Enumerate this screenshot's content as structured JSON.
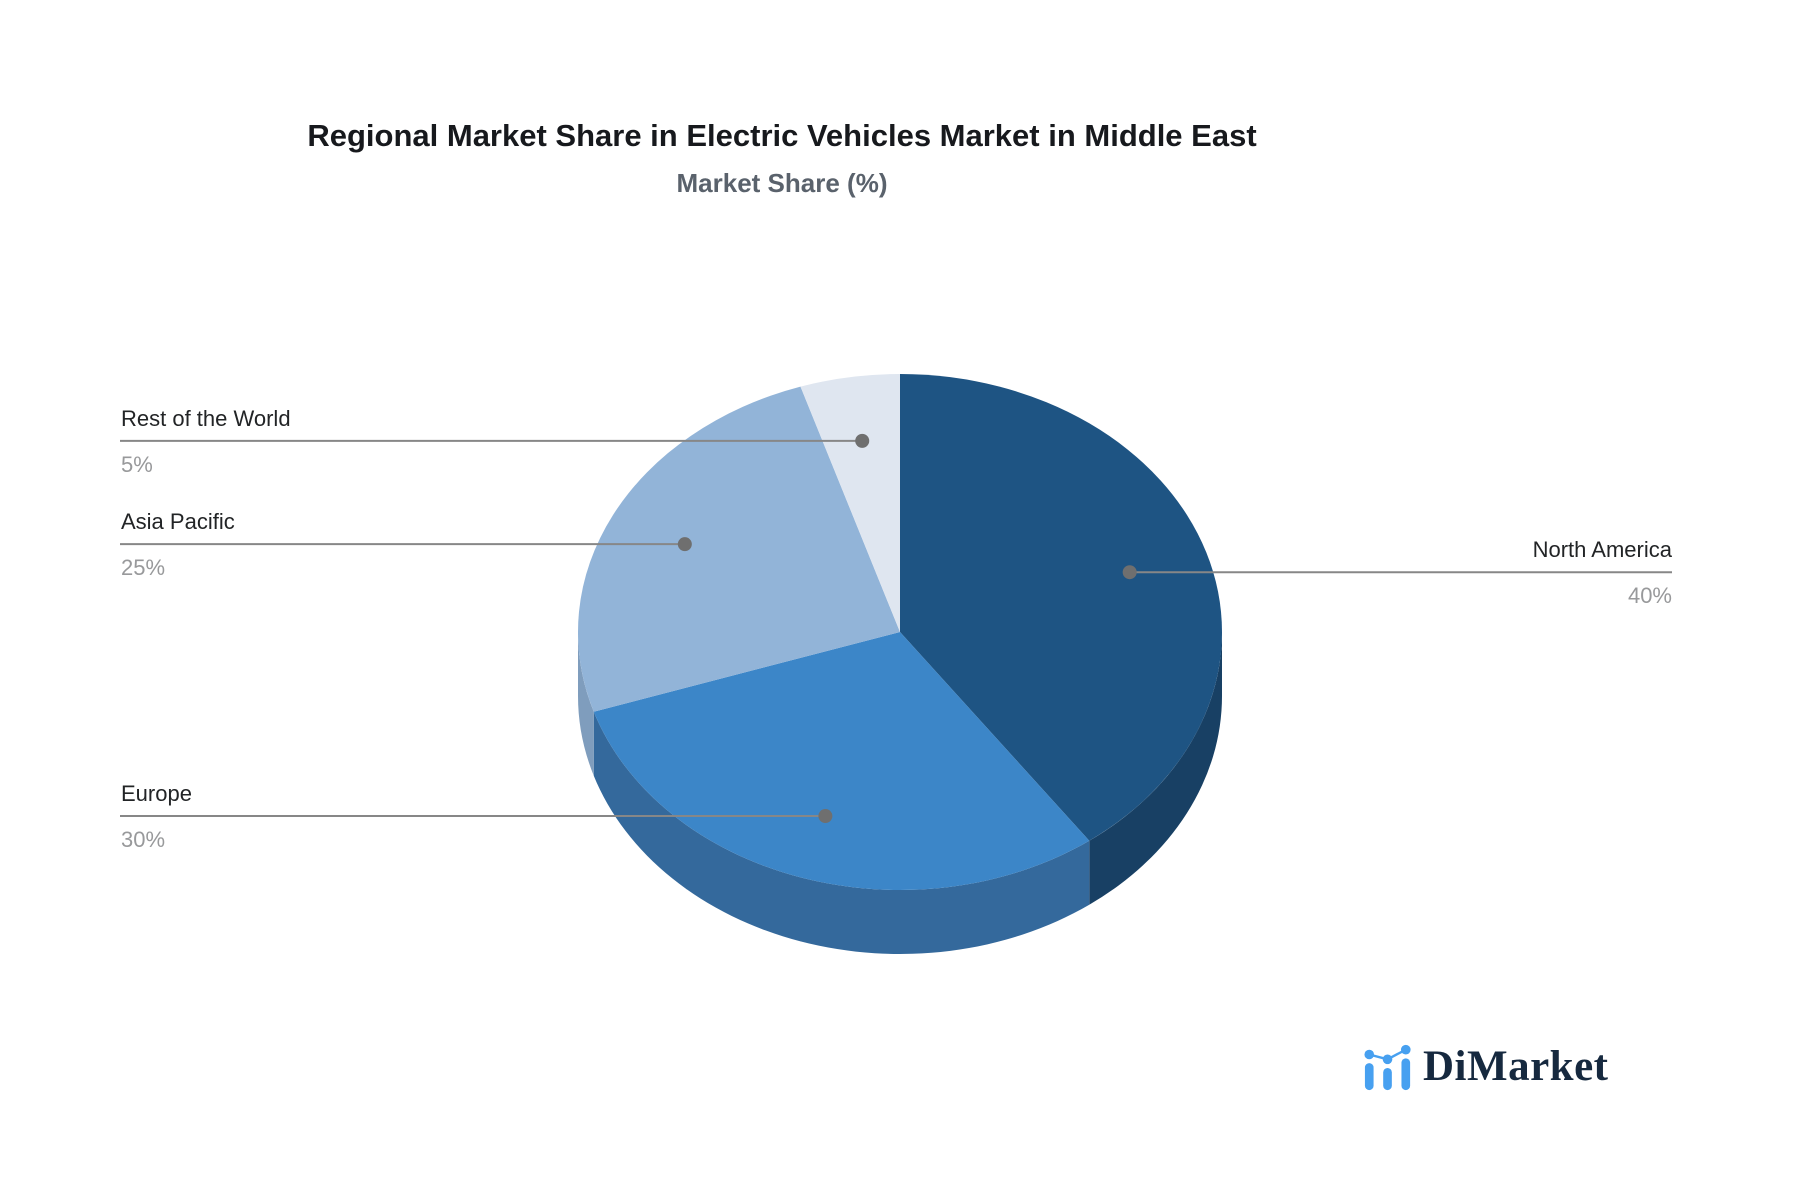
{
  "chart_data": {
    "type": "pie",
    "style": "3d",
    "title": "Regional Market Share in Electric Vehicles Market in Middle East",
    "subtitle": "Market Share (%)",
    "unit": "%",
    "start_angle": "12-o-clock",
    "direction": "clockwise",
    "legend_position": "leader-line-labels",
    "slices": [
      {
        "label": "North America",
        "value": 40,
        "color": "#1e5483",
        "side_color": "#184064",
        "label_side": "right"
      },
      {
        "label": "Europe",
        "value": 30,
        "color": "#3c86c8",
        "side_color": "#34699c",
        "label_side": "left"
      },
      {
        "label": "Asia Pacific",
        "value": 25,
        "color": "#92b4d8",
        "side_color": "#7f9dbd",
        "label_side": "left"
      },
      {
        "label": "Rest of the World",
        "value": 5,
        "color": "#dfe6f0",
        "side_color": "#c2cedd",
        "label_side": "left"
      }
    ]
  },
  "branding": {
    "logo_text": "DiMarket",
    "logo_icon": "bar-chart-trend-icon",
    "logo_text_color": "#16293f",
    "logo_accent_color": "#47a0f0"
  },
  "style": {
    "background": "#ffffff",
    "leader_line_color": "#878787",
    "leader_dot_color": "#6f6f6f",
    "label_color": "#222426",
    "percent_color": "#98999b",
    "title_color": "#17191d",
    "subtitle_color": "#5a626c"
  }
}
